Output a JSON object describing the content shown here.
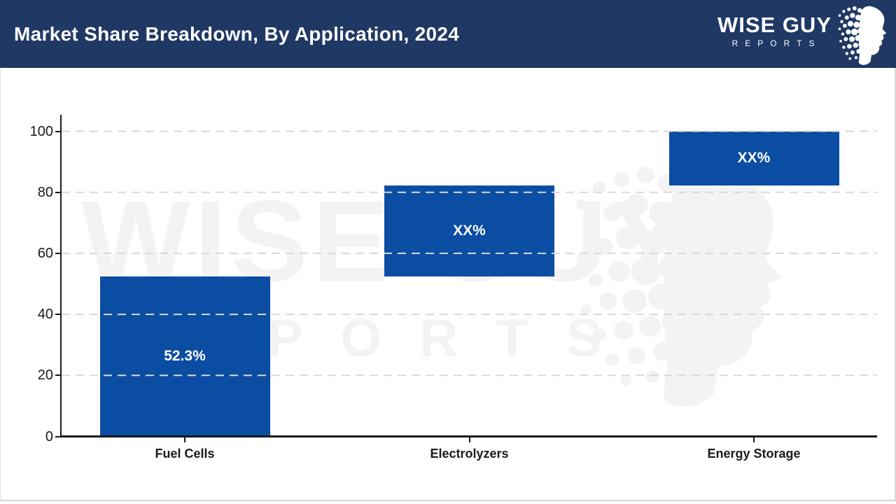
{
  "header": {
    "title": "Market Share Breakdown, By Application, 2024",
    "logo": {
      "line1": "WISE GUY",
      "line2": "REPORTS"
    }
  },
  "watermark": {
    "line1": "WISE GUY",
    "line2": "REPORTS"
  },
  "colors": {
    "header_bg": "#1f3864",
    "bar": "#0b4da2",
    "grid": "#d9d9d9",
    "axis": "#1a1a1a",
    "bar_label_text": "#ffffff",
    "watermark": "#f3f3f4"
  },
  "chart_data": {
    "type": "bar",
    "subtype": "waterfall-segments",
    "title": "Market Share Breakdown, By Application, 2024",
    "categories": [
      "Fuel Cells",
      "Electrolyzers",
      "Energy Storage"
    ],
    "series": [
      {
        "name": "Market share",
        "segments": [
          {
            "category": "Fuel Cells",
            "from": 0,
            "to": 52.3,
            "label": "52.3%"
          },
          {
            "category": "Electrolyzers",
            "from": 52.3,
            "to": 82.2,
            "label": "XX%"
          },
          {
            "category": "Energy Storage",
            "from": 82.2,
            "to": 100,
            "label": "XX%"
          }
        ]
      }
    ],
    "yticks": [
      0,
      20,
      40,
      60,
      80,
      100
    ],
    "ylim": [
      0,
      105
    ],
    "xlabel": "",
    "ylabel": "",
    "grid": "horizontal-dashed",
    "legend": "none"
  }
}
